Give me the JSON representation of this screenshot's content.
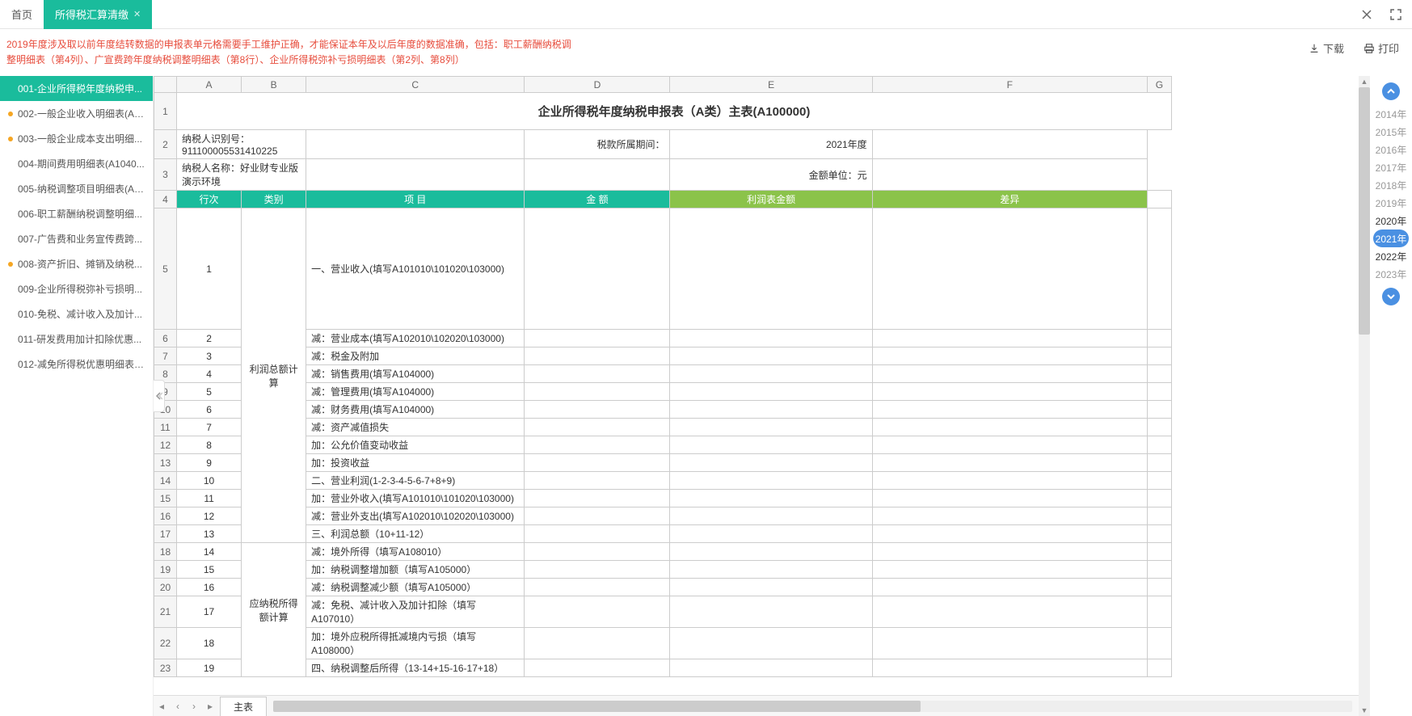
{
  "tabs": {
    "home": "首页",
    "active": "所得税汇算清缴"
  },
  "notice": "2019年度涉及取以前年度结转数据的申报表单元格需要手工维护正确，才能保证本年及以后年度的数据准确，包括：职工薪酬纳税调整明细表（第4列）、广宣费跨年度纳税调整明细表（第8行）、企业所得税弥补亏损明细表（第2列、第8列）",
  "actions": {
    "download": "下载",
    "print": "打印"
  },
  "sidebar": [
    {
      "marked": false,
      "label": "001-企业所得税年度纳税申...",
      "active": true
    },
    {
      "marked": true,
      "label": "002-一般企业收入明细表(A1..."
    },
    {
      "marked": true,
      "label": "003-一般企业成本支出明细..."
    },
    {
      "marked": false,
      "label": "004-期间费用明细表(A1040..."
    },
    {
      "marked": false,
      "label": "005-纳税调整项目明细表(A1..."
    },
    {
      "marked": false,
      "label": "006-职工薪酬纳税调整明细..."
    },
    {
      "marked": false,
      "label": "007-广告费和业务宣传费跨..."
    },
    {
      "marked": true,
      "label": "008-资产折旧、摊销及纳税..."
    },
    {
      "marked": false,
      "label": "009-企业所得税弥补亏损明..."
    },
    {
      "marked": false,
      "label": "010-免税、减计收入及加计..."
    },
    {
      "marked": false,
      "label": "011-研发费用加计扣除优惠..."
    },
    {
      "marked": false,
      "label": "012-减免所得税优惠明细表(..."
    }
  ],
  "colLetters": [
    "A",
    "B",
    "C",
    "D",
    "E",
    "F",
    "G"
  ],
  "title": "企业所得税年度纳税申报表（A类）主表(A100000)",
  "info": {
    "tax_id_label": "纳税人识别号：",
    "tax_id": "911100005531410225",
    "period_label": "税款所属期间：",
    "period": "2021年度",
    "name_label": "纳税人名称：",
    "name": "好业财专业版演示环境",
    "unit_label": "金额单位：元"
  },
  "headers": {
    "rownum": "行次",
    "category": "类别",
    "item": "项    目",
    "amount": "金    额",
    "profit": "利润表金额",
    "diff": "差异"
  },
  "cat1": "利润总额计算",
  "cat2": "应纳税所得额计算",
  "rows": [
    {
      "n": "1",
      "item": "一、营业收入(填写A101010\\101020\\103000)",
      "tall": true
    },
    {
      "n": "2",
      "item": "减：营业成本(填写A102010\\102020\\103000)"
    },
    {
      "n": "3",
      "item": "减：税金及附加"
    },
    {
      "n": "4",
      "item": "减：销售费用(填写A104000)"
    },
    {
      "n": "5",
      "item": "减：管理费用(填写A104000)"
    },
    {
      "n": "6",
      "item": "减：财务费用(填写A104000)"
    },
    {
      "n": "7",
      "item": "减：资产减值损失"
    },
    {
      "n": "8",
      "item": "加：公允价值变动收益"
    },
    {
      "n": "9",
      "item": "加：投资收益"
    },
    {
      "n": "10",
      "item": "二、营业利润(1-2-3-4-5-6-7+8+9)"
    },
    {
      "n": "11",
      "item": "加：营业外收入(填写A101010\\101020\\103000)"
    },
    {
      "n": "12",
      "item": "减：营业外支出(填写A102010\\102020\\103000)"
    },
    {
      "n": "13",
      "item": "三、利润总额（10+11-12）"
    },
    {
      "n": "14",
      "item": "减：境外所得（填写A108010）"
    },
    {
      "n": "15",
      "item": "加：纳税调整增加额（填写A105000）"
    },
    {
      "n": "16",
      "item": "减：纳税调整减少额（填写A105000）"
    },
    {
      "n": "17",
      "item": "减：免税、减计收入及加计扣除（填写A107010）"
    },
    {
      "n": "18",
      "item": "加：境外应税所得抵减境内亏损（填写A108000）"
    },
    {
      "n": "19",
      "item": "四、纳税调整后所得（13-14+15-16-17+18）"
    }
  ],
  "sheetTab": "主表",
  "years": [
    {
      "y": "2014年",
      "enabled": false
    },
    {
      "y": "2015年",
      "enabled": false
    },
    {
      "y": "2016年",
      "enabled": false
    },
    {
      "y": "2017年",
      "enabled": false
    },
    {
      "y": "2018年",
      "enabled": false
    },
    {
      "y": "2019年",
      "enabled": false
    },
    {
      "y": "2020年",
      "enabled": true
    },
    {
      "y": "2021年",
      "enabled": true,
      "active": true
    },
    {
      "y": "2022年",
      "enabled": true
    },
    {
      "y": "2023年",
      "enabled": false
    }
  ]
}
